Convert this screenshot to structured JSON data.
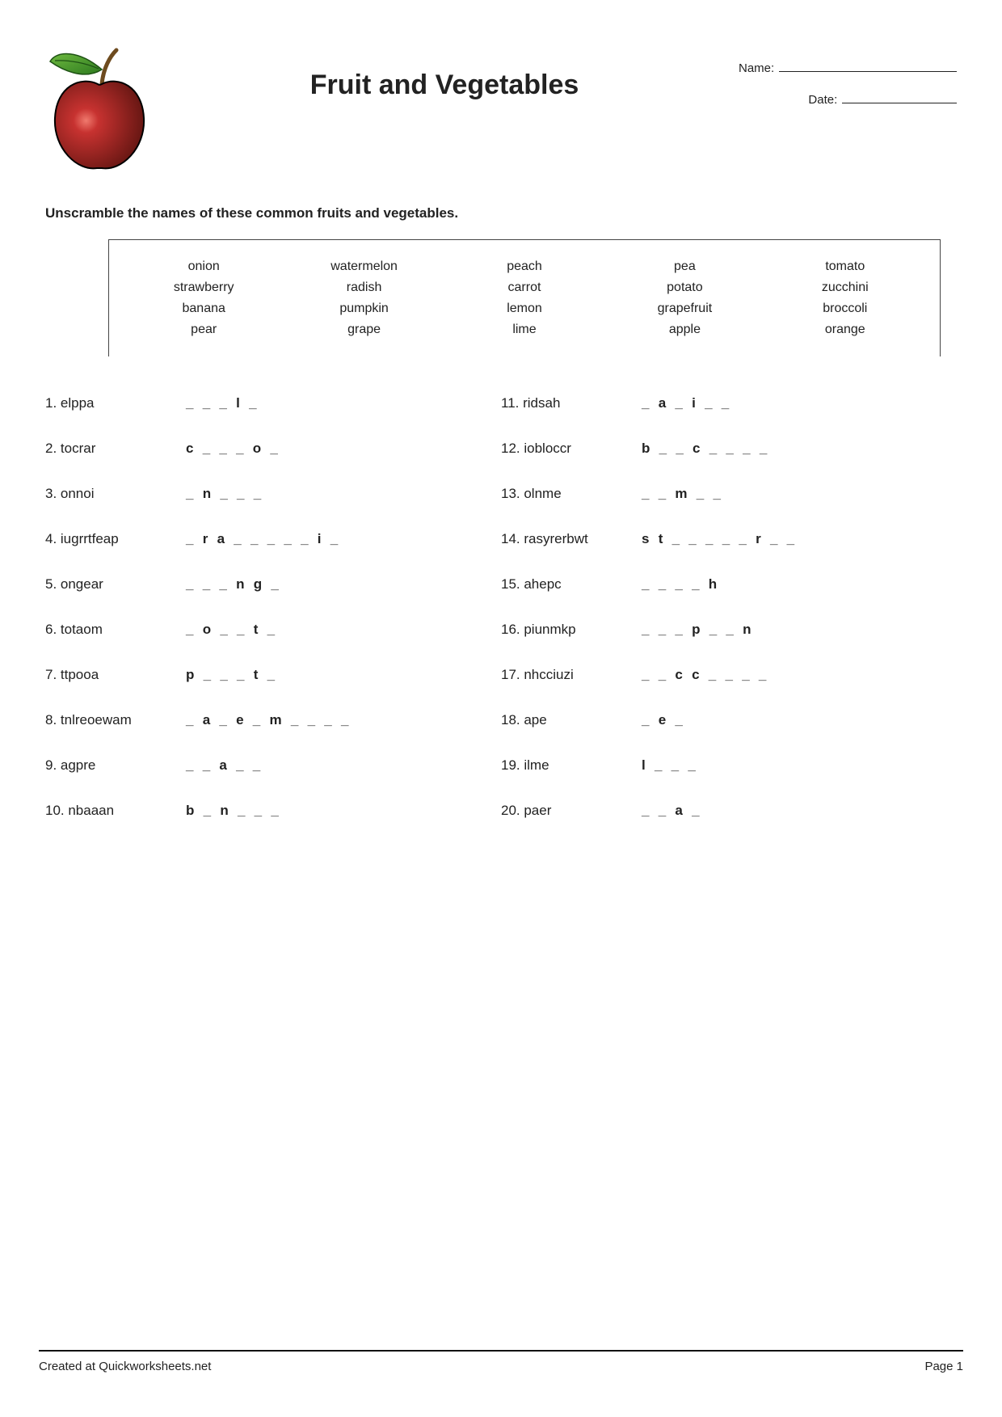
{
  "title": "Fruit and Vegetables",
  "meta": {
    "name_label": "Name:",
    "date_label": "Date:"
  },
  "instructions": "Unscramble the names of these common fruits and vegetables.",
  "wordbank": {
    "columns": [
      [
        "onion",
        "strawberry",
        "banana",
        "pear"
      ],
      [
        "watermelon",
        "radish",
        "pumpkin",
        "grape"
      ],
      [
        "peach",
        "carrot",
        "lemon",
        "lime"
      ],
      [
        "pea",
        "potato",
        "grapefruit",
        "apple"
      ],
      [
        "tomato",
        "zucchini",
        "broccoli",
        "orange"
      ]
    ]
  },
  "questions_left": [
    {
      "n": "1.",
      "scrambled": "elppa",
      "pattern": "_  _  _  l  _"
    },
    {
      "n": "2.",
      "scrambled": "tocrar",
      "pattern": "c  _  _  _  o  _"
    },
    {
      "n": "3.",
      "scrambled": "onnoi",
      "pattern": "_  n  _  _  _"
    },
    {
      "n": "4.",
      "scrambled": "iugrrtfeap",
      "pattern": "_  r  a  _  _  _  _  _  i  _"
    },
    {
      "n": "5.",
      "scrambled": "ongear",
      "pattern": "_  _  _  n  g  _"
    },
    {
      "n": "6.",
      "scrambled": "totaom",
      "pattern": "_  o  _  _  t  _"
    },
    {
      "n": "7.",
      "scrambled": "ttpooa",
      "pattern": "p  _  _  _  t  _"
    },
    {
      "n": "8.",
      "scrambled": "tnlreoewam",
      "pattern": "_  a  _  e  _  m  _  _  _  _"
    },
    {
      "n": "9.",
      "scrambled": "agpre",
      "pattern": "_  _  a  _  _"
    },
    {
      "n": "10.",
      "scrambled": "nbaaan",
      "pattern": "b  _  n  _  _  _"
    }
  ],
  "questions_right": [
    {
      "n": "11.",
      "scrambled": "ridsah",
      "pattern": "_  a  _  i  _  _"
    },
    {
      "n": "12.",
      "scrambled": "iobloccr",
      "pattern": "b  _  _  c  _  _  _  _"
    },
    {
      "n": "13.",
      "scrambled": "olnme",
      "pattern": "_  _  m  _  _"
    },
    {
      "n": "14.",
      "scrambled": "rasyrerbwt",
      "pattern": "s  t  _  _  _  _  _  r  _  _"
    },
    {
      "n": "15.",
      "scrambled": "ahepc",
      "pattern": "_  _  _  _  h"
    },
    {
      "n": "16.",
      "scrambled": "piunmkp",
      "pattern": "_  _  _  p  _  _  n"
    },
    {
      "n": "17.",
      "scrambled": "nhcciuzi",
      "pattern": "_  _  c  c  _  _  _  _"
    },
    {
      "n": "18.",
      "scrambled": "ape",
      "pattern": "_  e  _"
    },
    {
      "n": "19.",
      "scrambled": "ilme",
      "pattern": "l  _  _  _"
    },
    {
      "n": "20.",
      "scrambled": "paer",
      "pattern": "_  _  a  _"
    }
  ],
  "footer": {
    "left": "Created at Quickworksheets.net",
    "right": "Page 1"
  },
  "apple": {
    "body_light": "#c73230",
    "body_dark": "#5e1410",
    "highlight": "#f07a6e",
    "leaf_light": "#6eb93f",
    "leaf_dark": "#2d7a1f",
    "stem": "#6e4b1f",
    "outline": "#000000"
  }
}
